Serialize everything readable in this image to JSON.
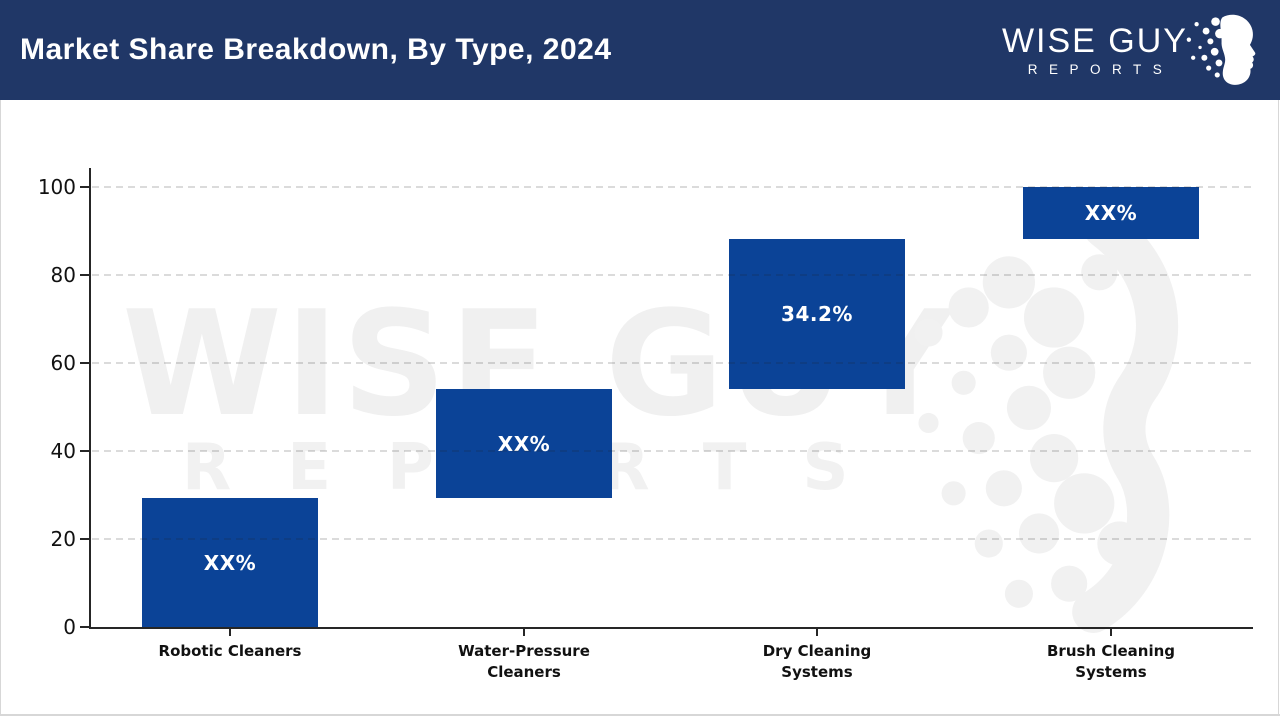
{
  "header": {
    "title": "Market Share Breakdown, By Type, 2024",
    "logo": {
      "wordmark": "WISE GUY",
      "subtext": "REPORTS"
    }
  },
  "watermark": {
    "line1": "WISE GUY",
    "line2": "REPORTS"
  },
  "chart_data": {
    "type": "bar",
    "subtype": "waterfall-floating-bars",
    "title": "Market Share Breakdown, By Type, 2024",
    "categories": [
      "Robotic Cleaners",
      "Water-Pressure Cleaners",
      "Dry Cleaning Systems",
      "Brush Cleaning Systems"
    ],
    "category_label_lines": [
      [
        "Robotic Cleaners"
      ],
      [
        "Water-Pressure",
        "Cleaners"
      ],
      [
        "Dry Cleaning",
        "Systems"
      ],
      [
        "Brush Cleaning",
        "Systems"
      ]
    ],
    "series": [
      {
        "name": "Market Share (%)",
        "segments": [
          {
            "category": "Robotic Cleaners",
            "start": 0,
            "end": 29.3,
            "value_label": "XX%"
          },
          {
            "category": "Water-Pressure Cleaners",
            "start": 29.3,
            "end": 54.0,
            "value_label": "XX%"
          },
          {
            "category": "Dry Cleaning Systems",
            "start": 54.0,
            "end": 88.2,
            "value_label": "34.2%"
          },
          {
            "category": "Brush Cleaning Systems",
            "start": 88.2,
            "end": 100,
            "value_label": "XX%"
          }
        ]
      }
    ],
    "xlabel": "",
    "ylabel": "",
    "ylim": [
      0,
      100
    ],
    "yticks": [
      0,
      20,
      40,
      60,
      80,
      100
    ],
    "grid": {
      "horizontal": true,
      "style": "dashed"
    },
    "legend": "none",
    "bar_color": "#0b4397",
    "bar_label_color": "#ffffff"
  },
  "colors": {
    "header_bg": "#203767",
    "chart_bg": "#ffffff",
    "bar": "#0b4397",
    "axis": "#262626",
    "tick_text": "#111111",
    "watermark": "#f0f0f0",
    "frame_line": "#d7d7d7"
  }
}
